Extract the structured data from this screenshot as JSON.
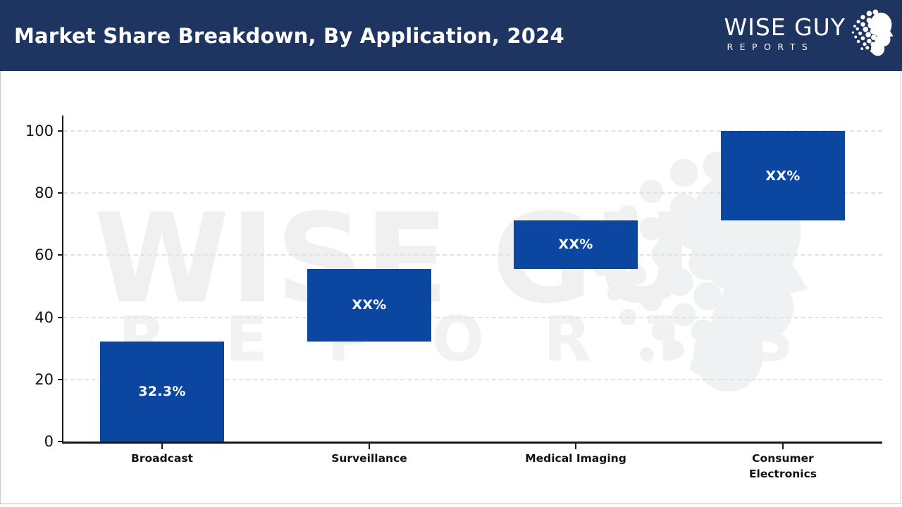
{
  "header": {
    "title": "Market Share Breakdown, By Application, 2024"
  },
  "logo": {
    "brand": "WISE GUY",
    "sub": "REPORTS"
  },
  "watermark": {
    "brand": "WISE GUY",
    "sub": "REPORTS"
  },
  "chart_data": {
    "type": "bar",
    "subtype": "waterfall",
    "title": "Market Share Breakdown, By Application, 2024",
    "categories": [
      "Broadcast",
      "Surveillance",
      "Medical Imaging",
      "Consumer Electronics"
    ],
    "bars": [
      {
        "category": "Broadcast",
        "start": 0,
        "end": 32.3,
        "label": "32.3%"
      },
      {
        "category": "Surveillance",
        "start": 32.3,
        "end": 55.6,
        "label": "XX%"
      },
      {
        "category": "Medical Imaging",
        "start": 55.6,
        "end": 71.2,
        "label": "XX%"
      },
      {
        "category": "Consumer Electronics",
        "start": 71.2,
        "end": 100,
        "label": "XX%"
      }
    ],
    "ylim": [
      0,
      100
    ],
    "yticks": [
      0,
      20,
      40,
      60,
      80,
      100
    ],
    "xlabel": "",
    "ylabel": "",
    "grid": "horizontal-dashed",
    "legend": "none",
    "bar_color": "#0b47a1",
    "bar_label_color": "#ffffff",
    "axis_color": "#1a1a1a"
  },
  "colors": {
    "header_bg": "#1f3561",
    "bar": "#0b47a1",
    "grid": "#e2e2e2",
    "watermark": "#f0f0f0",
    "frame_border": "#c9c9c9"
  }
}
